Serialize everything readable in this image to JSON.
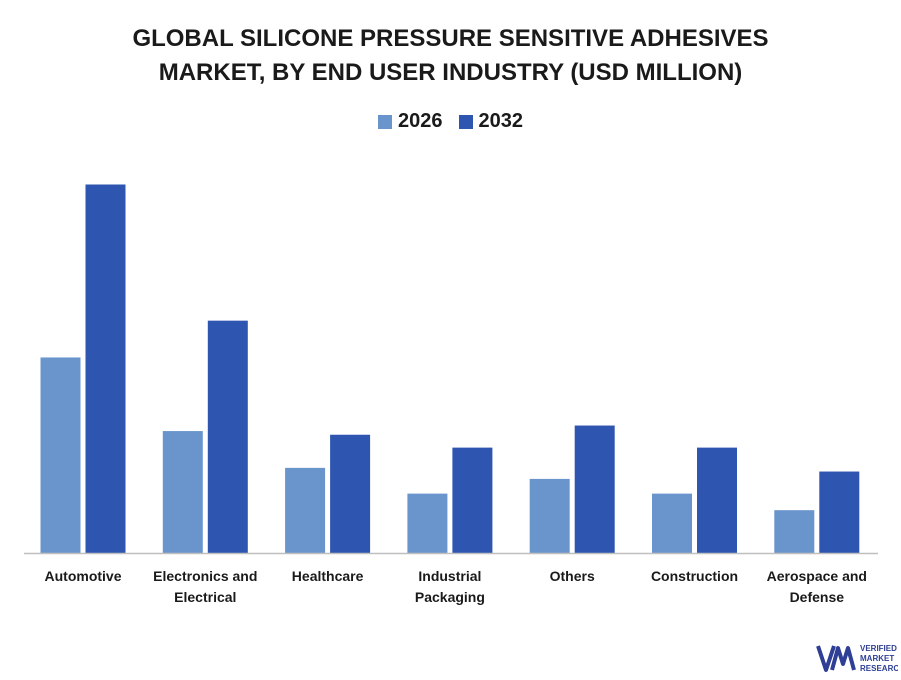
{
  "chart_data": {
    "type": "bar",
    "title_lines": [
      "GLOBAL SILICONE PRESSURE SENSITIVE ADHESIVES",
      "MARKET, BY END USER INDUSTRY (USD MILLION)"
    ],
    "categories": [
      [
        "Automotive"
      ],
      [
        "Electronics and",
        "Electrical"
      ],
      [
        "Healthcare"
      ],
      [
        "Industrial",
        "Packaging"
      ],
      [
        "Others"
      ],
      [
        "Construction"
      ],
      [
        "Aerospace and",
        "Defense"
      ]
    ],
    "series": [
      {
        "name": "2026",
        "color": "#6a95cc",
        "values": [
          53,
          33,
          23,
          16,
          20,
          16,
          11.5
        ]
      },
      {
        "name": "2032",
        "color": "#2e55b0",
        "values": [
          100,
          63,
          32,
          28.5,
          34.5,
          28.5,
          22
        ]
      }
    ],
    "ylim": [
      0,
      100
    ],
    "grid": false,
    "legend_position": "top-center",
    "axis_color": "#bfbfbf"
  },
  "logo": {
    "text_lines": [
      "VERIFIED",
      "MARKET",
      "RESEARCH"
    ],
    "color": "#2e3f95"
  }
}
